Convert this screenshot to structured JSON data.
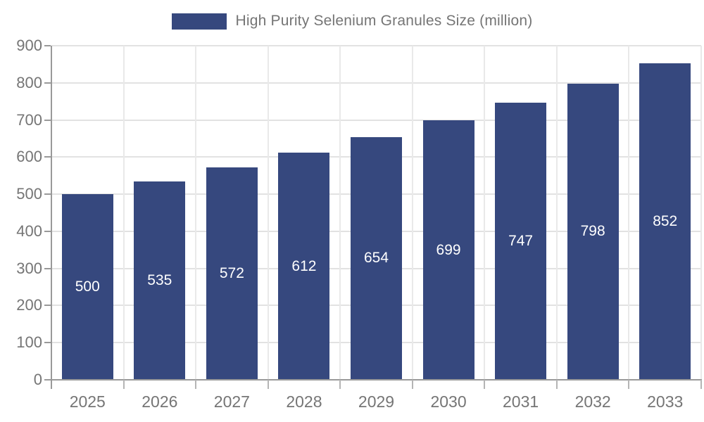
{
  "legend": {
    "label": "High Purity Selenium Granules Size (million)"
  },
  "chart_data": {
    "type": "bar",
    "title": "High Purity Selenium Granules Size (million)",
    "categories": [
      "2025",
      "2026",
      "2027",
      "2028",
      "2029",
      "2030",
      "2031",
      "2032",
      "2033"
    ],
    "series": [
      {
        "name": "High Purity Selenium Granules Size (million)",
        "values": [
          500,
          535,
          572,
          612,
          654,
          699,
          747,
          798,
          852
        ]
      }
    ],
    "ylim": [
      0,
      900
    ],
    "yticks": [
      0,
      100,
      200,
      300,
      400,
      500,
      600,
      700,
      800,
      900
    ],
    "grid": true,
    "legend_position": "top",
    "value_labels": "inside-center",
    "colors": {
      "bar": "#36487e",
      "grid_h": "#e2e2e2",
      "grid_v": "#e9e9e9",
      "axis": "#999999",
      "xtick": "#b5b5b5",
      "tick_text": "#757575",
      "value_text": "#ffffff",
      "background": "#ffffff"
    }
  }
}
